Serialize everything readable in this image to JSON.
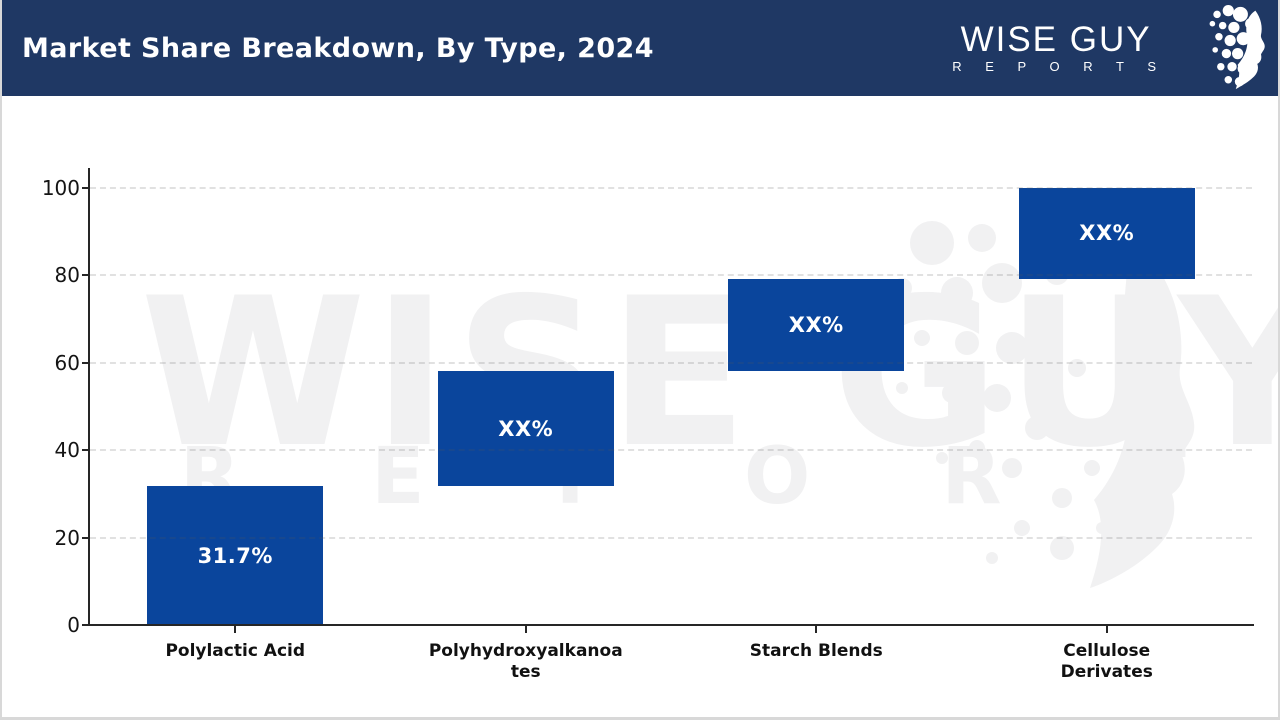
{
  "header": {
    "title": "Market Share Breakdown, By Type, 2024",
    "bg_color": "#1f3864",
    "brand": {
      "line1": "WISE GUY",
      "line2": "R E P O R T S"
    }
  },
  "watermark": {
    "line1": "WISE GUY",
    "line2": "R E P O R T S",
    "color": "#f1f1f2"
  },
  "chart_data": {
    "type": "bar",
    "subtype": "waterfall",
    "title": "Market Share Breakdown, By Type, 2024",
    "categories": [
      "Polylactic Acid",
      "Polyhydroxyalkanoates",
      "Starch Blends",
      "Cellulose Derivates"
    ],
    "segments": [
      {
        "category": "Polylactic Acid",
        "category_lines": [
          "Polylactic Acid"
        ],
        "start": 0,
        "end": 31.7,
        "label": "31.7%"
      },
      {
        "category": "Polyhydroxyalkanoates",
        "category_lines": [
          "Polyhydroxyalkanoa",
          "tes"
        ],
        "start": 31.7,
        "end": 58.1,
        "label": "XX%"
      },
      {
        "category": "Starch Blends",
        "category_lines": [
          "Starch Blends"
        ],
        "start": 58.1,
        "end": 79.1,
        "label": "XX%"
      },
      {
        "category": "Cellulose Derivates",
        "category_lines": [
          "Cellulose",
          "Derivates"
        ],
        "start": 79.1,
        "end": 100,
        "label": "XX%"
      }
    ],
    "y_ticks": [
      0,
      20,
      40,
      60,
      80,
      100
    ],
    "ylim": [
      0,
      100
    ],
    "grid": "dashed-horizontal",
    "legend": "none",
    "bar_color": "#0a459c",
    "bar_label_color": "#ffffff",
    "axis_color": "#262626",
    "grid_color": "#dcdcdc"
  }
}
